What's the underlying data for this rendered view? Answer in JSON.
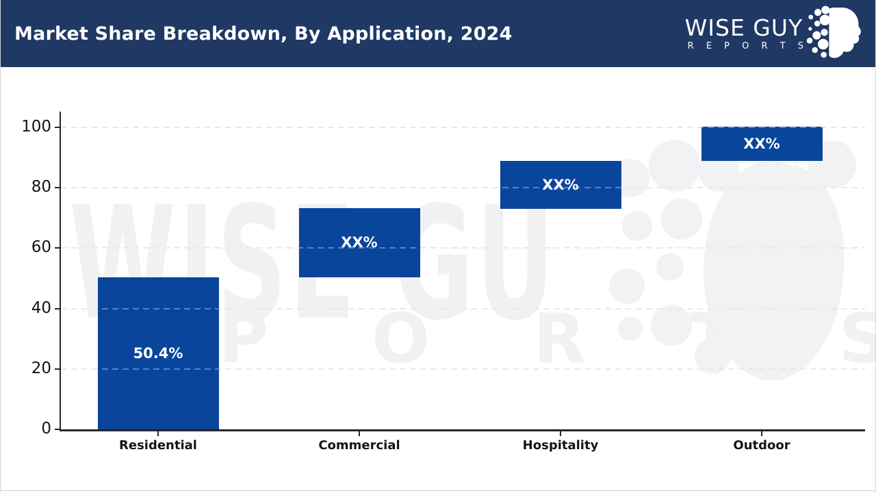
{
  "header": {
    "title": "Market Share Breakdown, By Application, 2024",
    "logo": {
      "wordmark": "WISE GUY",
      "sub": "R E P O R T S"
    }
  },
  "watermark": {
    "line1": "WISE GU",
    "line2": "P O R T S"
  },
  "chart_data": {
    "type": "bar",
    "subtype": "floating-segment waterfall of market share",
    "title": "Market Share Breakdown, By Application, 2024",
    "categories": [
      "Residential",
      "Commercial",
      "Hospitality",
      "Outdoor"
    ],
    "segments": [
      {
        "category": "Residential",
        "start": 0,
        "end": 50.4,
        "label": "50.4%"
      },
      {
        "category": "Commercial",
        "start": 50.4,
        "end": 73.2,
        "label": "XX%"
      },
      {
        "category": "Hospitality",
        "start": 73.0,
        "end": 88.9,
        "label": "XX%"
      },
      {
        "category": "Outdoor",
        "start": 88.8,
        "end": 100.3,
        "label": "XX%"
      }
    ],
    "xlabel": "",
    "ylabel": "",
    "ylim": [
      0,
      105
    ],
    "yticks": [
      0,
      20,
      40,
      60,
      80,
      100
    ],
    "grid": "horizontal dashed light-gray",
    "legend": "none",
    "bar_color": "#0a459c",
    "bar_label_color": "#ffffff",
    "axis_color": "#262626"
  },
  "colors": {
    "header_bg": "#1f3864",
    "bar": "#0a459c",
    "grid": "#dcdcdc",
    "watermark": "#f1f1f4",
    "text_dark": "#141414",
    "text_light": "#ffffff"
  }
}
